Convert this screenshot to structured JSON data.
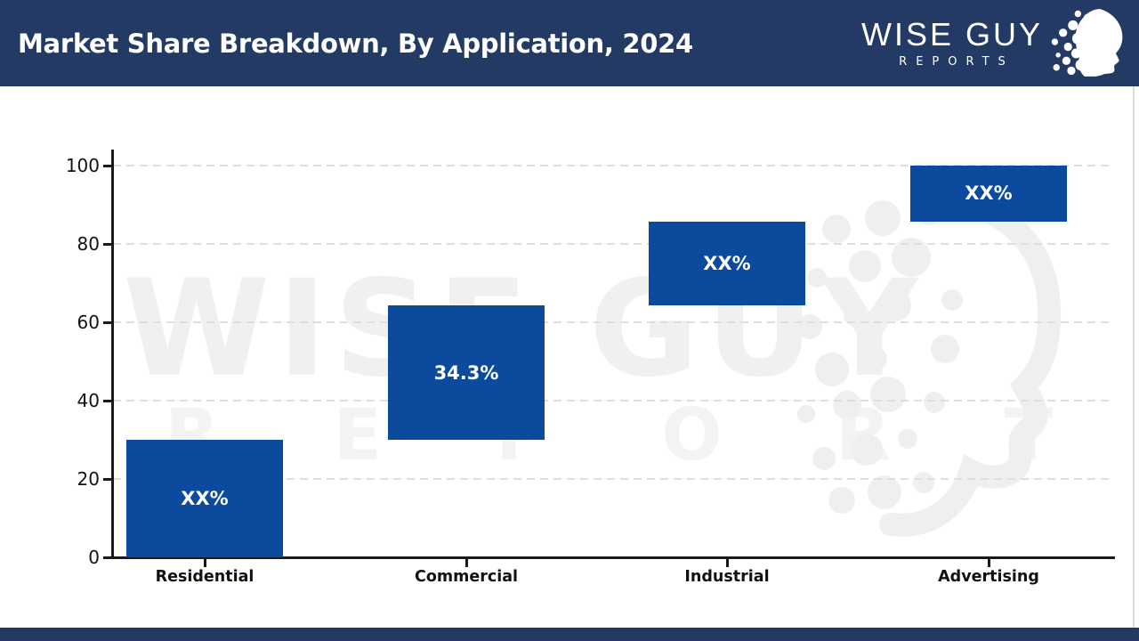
{
  "header": {
    "title": "Market Share Breakdown, By Application, 2024",
    "logo": {
      "line1": "WISE GUY",
      "line2": "REPORTS"
    }
  },
  "watermark": {
    "line1": "WISE GUY",
    "line2": "R E P O R T S"
  },
  "colors": {
    "header_navy": "#233a64",
    "bar_blue": "#0c4a9d",
    "grid_gray": "#dedede",
    "watermark_gray": "#f0f0f0",
    "footer_navy": "#233a64"
  },
  "chart_data": {
    "type": "bar",
    "subtype": "waterfall",
    "title": "Market Share Breakdown, By Application, 2024",
    "xlabel": "",
    "ylabel": "",
    "ylim": [
      0,
      105
    ],
    "yticks": [
      0,
      20,
      40,
      60,
      80,
      100
    ],
    "grid": "horizontal-dashed",
    "legend": "none",
    "bar_color": "#0c4a9d",
    "categories": [
      "Residential",
      "Commercial",
      "Industrial",
      "Advertising"
    ],
    "segments": [
      {
        "category": "Residential",
        "start": 0,
        "end": 30,
        "value": 30,
        "display_label": "XX%"
      },
      {
        "category": "Commercial",
        "start": 30,
        "end": 64.3,
        "value": 34.3,
        "display_label": "34.3%"
      },
      {
        "category": "Industrial",
        "start": 64.3,
        "end": 85.7,
        "value": 21.4,
        "display_label": "XX%"
      },
      {
        "category": "Advertising",
        "start": 85.7,
        "end": 100,
        "value": 14.3,
        "display_label": "XX%"
      }
    ]
  }
}
